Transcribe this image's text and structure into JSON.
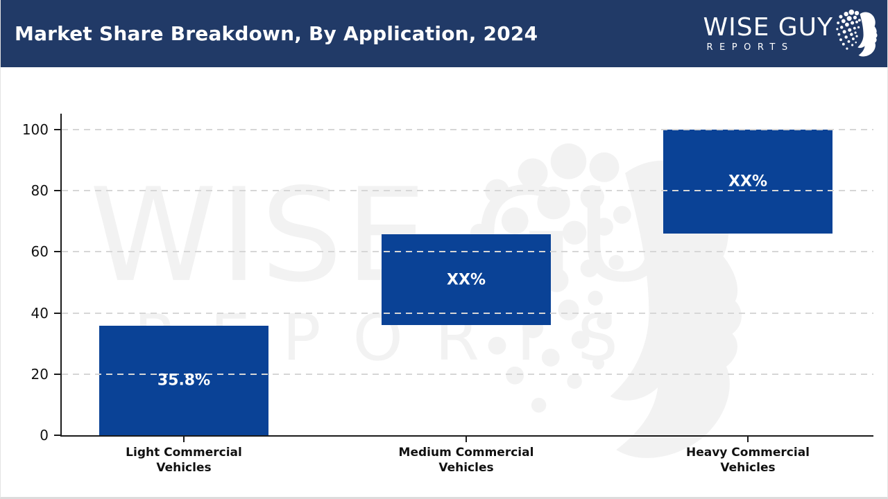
{
  "header": {
    "title": "Market Share Breakdown, By Application, 2024",
    "logo": {
      "line1": "WISE GUY",
      "line2": "REPORTS"
    }
  },
  "watermark": {
    "line1": "WISE GUY",
    "line2": "REPORTS"
  },
  "colors": {
    "header_bg": "#213a67",
    "bar": "#0a4296",
    "bar_label": "#ffffff",
    "grid": "#d6d6d6",
    "axis": "#1a1a1a",
    "watermark": "#f2f2f2",
    "page_border": "#dcdcdc"
  },
  "chart_data": {
    "type": "bar",
    "subtype": "floating-segment (waterfall-style market share)",
    "title": "Market Share Breakdown, By Application, 2024",
    "categories": [
      "Light Commercial Vehicles",
      "Medium Commercial Vehicles",
      "Heavy Commercial Vehicles"
    ],
    "segments": [
      {
        "category": "Light Commercial Vehicles",
        "label_lines": [
          "Light Commercial",
          "Vehicles"
        ],
        "from": 0,
        "to": 35.8,
        "label": "35.8%"
      },
      {
        "category": "Medium Commercial Vehicles",
        "label_lines": [
          "Medium Commercial",
          "Vehicles"
        ],
        "from": 36,
        "to": 65.8,
        "label": "XX%"
      },
      {
        "category": "Heavy Commercial Vehicles",
        "label_lines": [
          "Heavy Commercial",
          "Vehicles"
        ],
        "from": 66,
        "to": 100,
        "label": "XX%"
      }
    ],
    "xlabel": "",
    "ylabel": "",
    "ylim": [
      0,
      100
    ],
    "yticks": [
      0,
      20,
      40,
      60,
      80,
      100
    ],
    "grid": "horizontal dashed, drawn over bars",
    "legend": "none"
  }
}
